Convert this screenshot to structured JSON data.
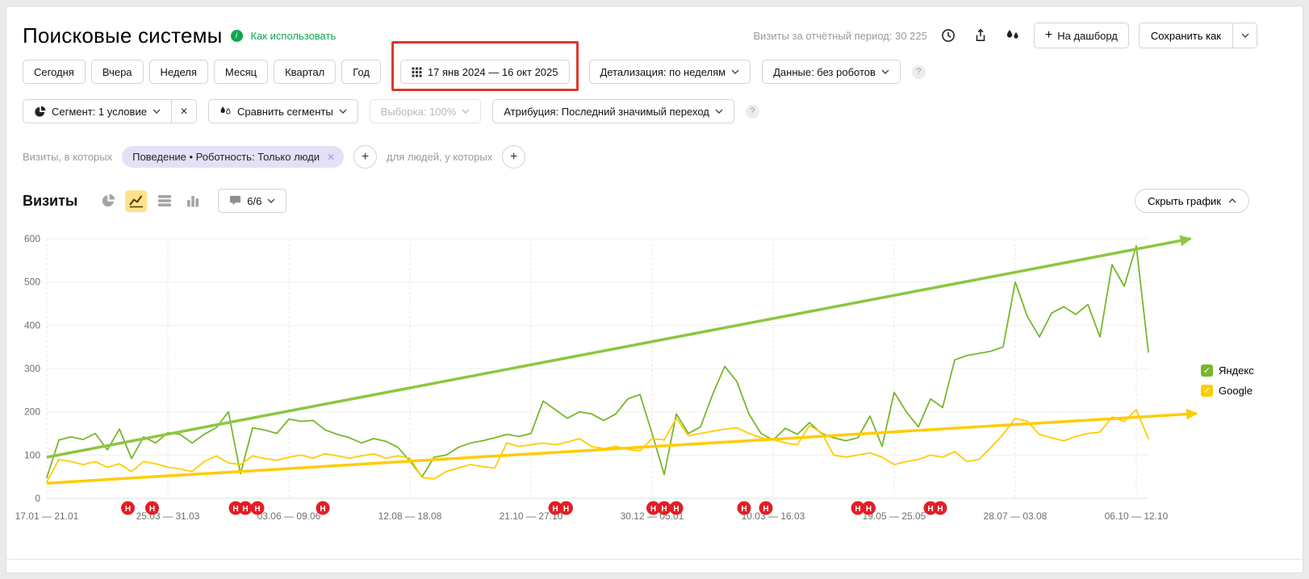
{
  "icons": {
    "info": "i",
    "plus": "+",
    "close": "✕",
    "question": "?",
    "check": "✓"
  },
  "page": {
    "title": "Поисковые системы",
    "help_link": "Как использовать",
    "visits_period_label": "Визиты за отчётный период:",
    "visits_period_value": "30 225"
  },
  "toolbar": {
    "add_to_dashboard": "На дашборд",
    "save_as": "Сохранить как"
  },
  "period": {
    "tabs": [
      "Сегодня",
      "Вчера",
      "Неделя",
      "Месяц",
      "Квартал",
      "Год"
    ],
    "date_range": "17 янв 2024 — 16 окт 2025",
    "detail": "Детализация: по неделям",
    "data_mode": "Данные: без роботов"
  },
  "segment_bar": {
    "segment": "Сегмент: 1 условие",
    "compare": "Сравнить сегменты",
    "sampling": "Выборка: 100%",
    "attribution": "Атрибуция: Последний значимый переход"
  },
  "filter_bar": {
    "visits_in_which": "Визиты, в которых",
    "chip": "Поведение • Роботность: Только люди",
    "for_people": "для людей, у которых"
  },
  "chart_header": {
    "title": "Визиты",
    "series_selector": "6/6",
    "hide_chart": "Скрыть график"
  },
  "colors": {
    "yandex_green": "#76b82a",
    "google_yellow": "#ffcc00",
    "trend_green": "#8dc63f",
    "note_red": "#e31d25",
    "annotation_red": "#e0362c",
    "selected_icon_bg": "#ffe18d",
    "link_green": "#0ea84e",
    "chip_bg": "#e6e0f7"
  },
  "chart_data": {
    "type": "line",
    "title": "Визиты",
    "xlabel": "",
    "ylabel": "",
    "ylim": [
      0,
      600
    ],
    "yticks": [
      0,
      100,
      200,
      300,
      400,
      500,
      600
    ],
    "grid": true,
    "legend_position": "right",
    "x_tick_indices": [
      0,
      10,
      20,
      30,
      40,
      50,
      60,
      70,
      80,
      90
    ],
    "x_tick_labels": [
      "17.01 — 21.01",
      "25.03 — 31.03",
      "03.06 — 09.06",
      "12.08 — 18.08",
      "21.10 — 27.10",
      "30.12 — 05.01",
      "10.03 — 16.03",
      "19.05 — 25.05",
      "28.07 — 03.08",
      "06.10 — 12.10"
    ],
    "series": [
      {
        "name": "Яндекс",
        "color": "#76b82a",
        "values": [
          48,
          135,
          142,
          136,
          150,
          112,
          160,
          92,
          142,
          128,
          152,
          148,
          128,
          148,
          163,
          200,
          57,
          163,
          158,
          150,
          183,
          178,
          180,
          158,
          148,
          140,
          128,
          138,
          132,
          118,
          86,
          50,
          95,
          100,
          118,
          128,
          133,
          140,
          148,
          143,
          150,
          225,
          205,
          185,
          200,
          195,
          180,
          195,
          230,
          240,
          150,
          55,
          195,
          150,
          165,
          240,
          305,
          270,
          195,
          150,
          135,
          162,
          148,
          175,
          150,
          140,
          133,
          140,
          190,
          120,
          245,
          200,
          165,
          230,
          210,
          320,
          330,
          335,
          340,
          350,
          500,
          420,
          373,
          428,
          443,
          425,
          448,
          373,
          540,
          490,
          583,
          338
        ]
      },
      {
        "name": "Google",
        "color": "#ffcc00",
        "values": [
          38,
          90,
          85,
          78,
          85,
          72,
          80,
          62,
          85,
          80,
          72,
          68,
          62,
          85,
          98,
          82,
          78,
          98,
          92,
          88,
          95,
          100,
          93,
          103,
          98,
          93,
          98,
          103,
          93,
          98,
          93,
          48,
          45,
          62,
          70,
          78,
          73,
          70,
          128,
          120,
          124,
          128,
          124,
          130,
          138,
          120,
          115,
          120,
          113,
          110,
          138,
          135,
          185,
          145,
          150,
          155,
          160,
          163,
          150,
          140,
          136,
          128,
          124,
          168,
          152,
          100,
          95,
          100,
          105,
          95,
          78,
          85,
          90,
          100,
          95,
          108,
          85,
          90,
          118,
          148,
          185,
          178,
          148,
          140,
          133,
          143,
          150,
          153,
          188,
          178,
          205,
          138
        ]
      }
    ],
    "trend_arrows": [
      {
        "color": "#8dc63f",
        "from": {
          "index": 0,
          "value": 95
        },
        "to": {
          "index": 94.5,
          "value": 600
        }
      },
      {
        "color": "#ffcc00",
        "from": {
          "index": 0,
          "value": 35
        },
        "to": {
          "index": 95,
          "value": 196
        }
      }
    ],
    "note_markers": {
      "label": "Н",
      "color": "#e31d25",
      "indices": [
        6.7,
        8.7,
        15.6,
        16.4,
        17.4,
        22.8,
        42,
        42.9,
        50.1,
        51,
        52,
        57.6,
        59.4,
        67,
        67.9,
        73,
        73.8
      ]
    }
  }
}
